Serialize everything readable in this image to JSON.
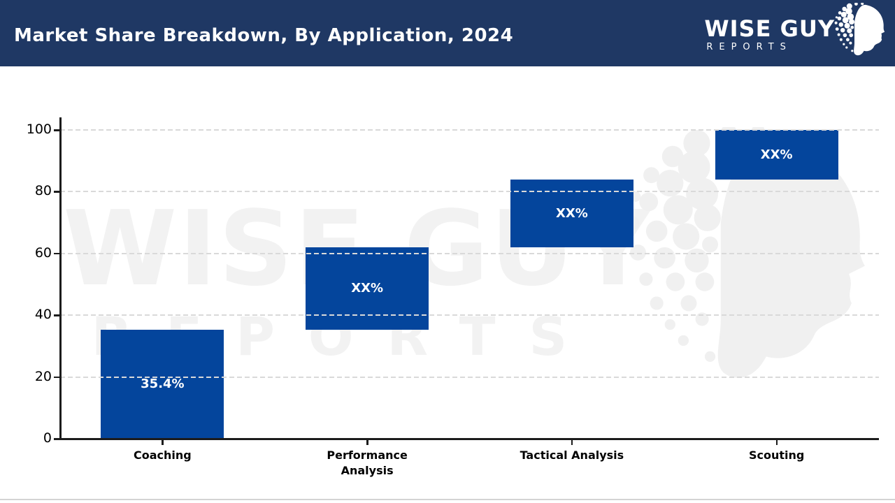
{
  "header": {
    "title": "Market Share Breakdown, By Application, 2024",
    "logo": {
      "name": "WISE GUY",
      "sub": "REPORTS"
    }
  },
  "watermark": {
    "line1": "WISE GUY",
    "line2": "REPORTS"
  },
  "chart_data": {
    "type": "bar",
    "subtype": "waterfall",
    "title": "Market Share Breakdown, By Application, 2024",
    "categories": [
      "Coaching",
      "Performance Analysis",
      "Tactical Analysis",
      "Scouting"
    ],
    "series": [
      {
        "name": "Market Share",
        "segments": [
          {
            "start": 0,
            "end": 35.4
          },
          {
            "start": 35.4,
            "end": 62
          },
          {
            "start": 62,
            "end": 84
          },
          {
            "start": 84,
            "end": 100
          }
        ]
      }
    ],
    "bar_labels": [
      "35.4%",
      "XX%",
      "XX%",
      "XX%"
    ],
    "ylim": [
      0,
      100
    ],
    "yticks": [
      0,
      20,
      40,
      60,
      80,
      100
    ],
    "grid": "horizontal-dashed",
    "legend": "none",
    "bar_color": "#04459c",
    "bar_label_color": "#ffffff",
    "accent_navy": "#1f3864"
  }
}
